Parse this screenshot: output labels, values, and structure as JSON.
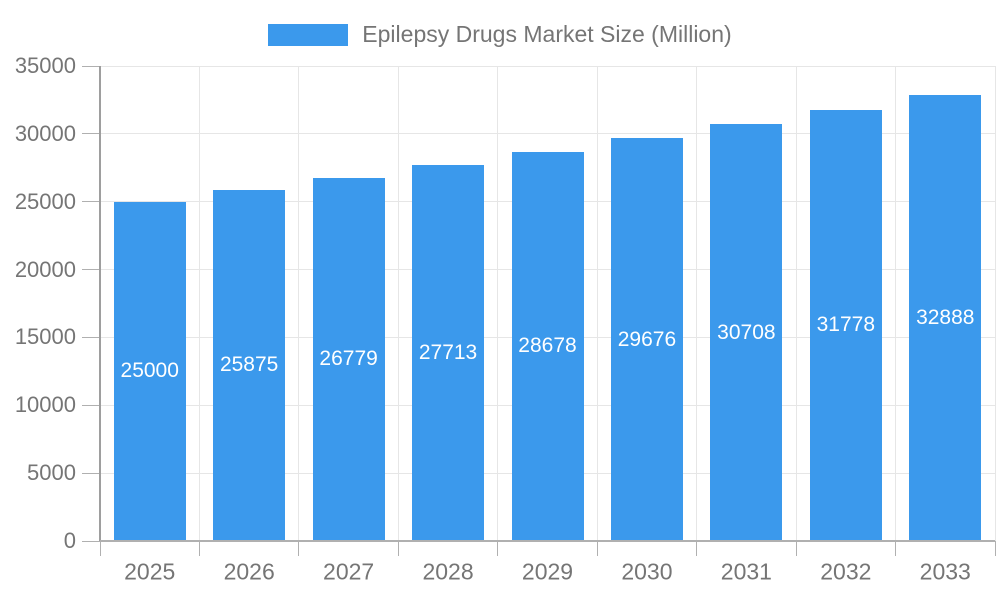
{
  "legend": {
    "label": "Epilepsy Drugs Market Size (Million)"
  },
  "chart_data": {
    "type": "bar",
    "title": "",
    "series_name": "Epilepsy Drugs Market Size (Million)",
    "categories": [
      "2025",
      "2026",
      "2027",
      "2028",
      "2029",
      "2030",
      "2031",
      "2032",
      "2033"
    ],
    "values": [
      25000,
      25875,
      26779,
      27713,
      28678,
      29676,
      30708,
      31778,
      32888
    ],
    "xlabel": "",
    "ylabel": "",
    "ylim": [
      0,
      35000
    ],
    "ytick_step": 5000,
    "yticks": [
      0,
      5000,
      10000,
      15000,
      20000,
      25000,
      30000,
      35000
    ],
    "grid": true,
    "legend_position": "top",
    "bar_label_position": "inside-center",
    "colors": {
      "bar": "#3b99ec",
      "bar_label_text": "#ffffff",
      "axis_text": "#757575",
      "gridline": "#e6e6e6",
      "axis_line": "#b0b0b0",
      "y_axis_line": "#9e9e9e",
      "background": "#ffffff"
    }
  }
}
